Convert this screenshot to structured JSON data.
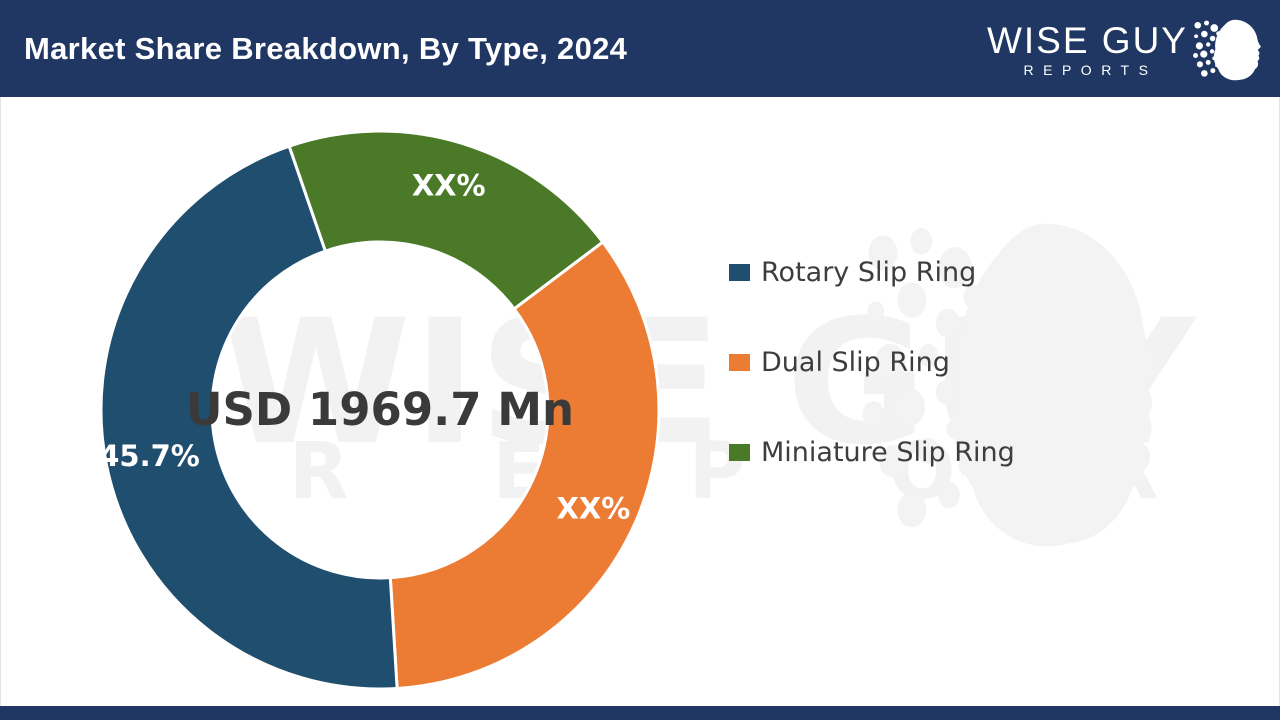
{
  "header": {
    "title": "Market Share Breakdown, By Type, 2024",
    "logo_line1": "WISE GUY",
    "logo_line2": "REPORTS"
  },
  "watermark": {
    "line1": "WISE GUY",
    "line2": "R E P O R T S"
  },
  "chart_data": {
    "type": "donut",
    "title": "Market Share Breakdown, By Type, 2024",
    "center_label": "USD 1969.7 Mn",
    "start_angle_deg": 109,
    "legend_position": "right",
    "slices": [
      {
        "name": "Miniature Slip Ring",
        "percent": 20.0,
        "display_label": "XX%",
        "color": "#4a7a28"
      },
      {
        "name": "Dual Slip Ring",
        "percent": 34.3,
        "display_label": "XX%",
        "color": "#ec7c33"
      },
      {
        "name": "Rotary Slip Ring",
        "percent": 45.7,
        "display_label": "45.7%",
        "color": "#1f4e6e"
      }
    ]
  },
  "legend": {
    "items": [
      {
        "label": "Rotary Slip Ring",
        "color": "#1f4e6e"
      },
      {
        "label": "Dual Slip Ring",
        "color": "#ec7c33"
      },
      {
        "label": "Miniature Slip Ring",
        "color": "#4a7a28"
      }
    ]
  },
  "colors": {
    "header_bg": "#203764",
    "footer_bg": "#203764",
    "watermark": "#f2f2f2",
    "center_text": "#3a3a3a"
  }
}
